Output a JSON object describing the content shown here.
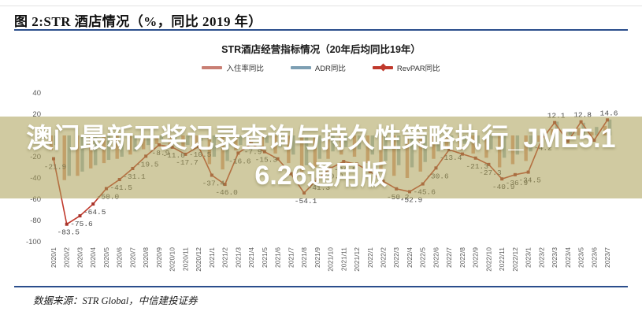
{
  "header": {
    "figure_title": "图 2:STR 酒店情况（%，同比 2019 年）"
  },
  "chart": {
    "title": "STR酒店经营指标情况（20年后均同比19年）",
    "legend": [
      {
        "label": "入住率同比",
        "color": "#c97f74",
        "marker": "line"
      },
      {
        "label": "ADR同比",
        "color": "#7d9fb3",
        "marker": "line"
      },
      {
        "label": "RevPAR同比",
        "color": "#c0392c",
        "marker": "line-diamond"
      }
    ]
  },
  "chart_data": {
    "type": "bar",
    "title": "STR酒店经营指标情况（20年后均同比19年）",
    "xlabel": "",
    "ylabel": "",
    "ylim": [
      -100,
      40
    ],
    "y_ticks": [
      40,
      20,
      0,
      -20,
      -40,
      -60,
      -80,
      -100
    ],
    "grid": false,
    "legend_position": "top",
    "categories": [
      "2020/1",
      "2020/2",
      "2020/3",
      "2020/4",
      "2020/5",
      "2020/6",
      "2020/7",
      "2020/8",
      "2020/9",
      "2020/10",
      "2020/11",
      "2020/12",
      "2021/1",
      "2021/2",
      "2021/3",
      "2021/4",
      "2021/5",
      "2021/6",
      "2021/7",
      "2021/8",
      "2021/9",
      "2021/10",
      "2021/11",
      "2021/12",
      "2022/1",
      "2022/2",
      "2022/3",
      "2022/4",
      "2022/5",
      "2022/6",
      "2022/7",
      "2022/8",
      "2022/9",
      "2022/10",
      "2022/11",
      "2022/12",
      "2023/1",
      "2023/2",
      "2023/3",
      "2023/4",
      "2023/5",
      "2023/6",
      "2023/7"
    ],
    "series": [
      {
        "name": "入住率同比",
        "type": "bar",
        "color": "#e0a284",
        "values": [
          -14,
          -42,
          -38,
          -31,
          -26,
          -22,
          -18,
          -13,
          -8,
          -10,
          -13,
          -9,
          -27,
          -32,
          -14,
          -7,
          -12,
          -17,
          -26,
          -38,
          -30,
          -22,
          -18,
          -20,
          -26,
          -33,
          -38,
          -40,
          -34,
          -22,
          -11,
          -14,
          -17,
          -21,
          -30,
          -27,
          -24,
          -6,
          6,
          2,
          7,
          3,
          9
        ]
      },
      {
        "name": "ADR同比",
        "type": "bar",
        "color": "#a4bcc2",
        "values": [
          -9,
          -38,
          -34,
          -28,
          -23,
          -20,
          -15,
          -9,
          -4,
          -6,
          -9,
          -5,
          -20,
          -24,
          -9,
          -3,
          -7,
          -11,
          -18,
          -28,
          -22,
          -15,
          -11,
          -13,
          -18,
          -24,
          -28,
          -30,
          -25,
          -15,
          -5,
          -8,
          -10,
          -13,
          -21,
          -18,
          -15,
          2,
          13,
          6,
          12,
          8,
          15
        ]
      },
      {
        "name": "RevPAR同比",
        "type": "line",
        "color": "#c0392c",
        "marker_color": "#a8332a",
        "values": [
          -21.9,
          -83.5,
          -75.6,
          -64.5,
          -50.0,
          -41.5,
          -31.1,
          -19.5,
          -8.9,
          -11.0,
          -17.7,
          -10.5,
          -37.4,
          -46.0,
          -16.6,
          -7.9,
          -15.3,
          -22.0,
          -36.0,
          -54.1,
          -41.3,
          -30.9,
          -24.5,
          -27.0,
          -34.0,
          -43.0,
          -50.2,
          -52.9,
          -45.6,
          -30.6,
          -13.4,
          -17.5,
          -21.3,
          -27.3,
          -40.9,
          -36.9,
          -34.5,
          -4.2,
          12.1,
          -5.6,
          12.8,
          -4.5,
          14.6
        ],
        "labels": [
          "-21.9",
          "-83.5",
          "-75.6",
          "-64.5",
          "-50.0",
          "-41.5",
          "-31.1",
          "-19.5",
          "-8.9",
          "-11.0",
          "-17.7",
          "-10.5",
          "-37.4",
          "-46.0",
          "-16.6",
          "-7.9",
          "-15.3",
          null,
          null,
          "-54.1",
          "-41.3",
          "-30.9",
          "-24.5",
          null,
          null,
          null,
          "-50.2",
          "-52.9",
          "-45.6",
          "-30.6",
          "-13.4",
          null,
          "-21.3",
          "-27.3",
          "-40.9",
          "-36.9",
          "-34.5",
          "-4.2",
          "12.1",
          null,
          "12.8",
          null,
          "14.6"
        ]
      }
    ]
  },
  "watermark": {
    "text": "澳门最新开奖记录查询与持久性策略执行_JME5.16.26通用版",
    "band_color": "rgba(169,159,84,0.55)"
  },
  "footer": {
    "source": "数据来源：STR Global，中信建投证券"
  },
  "colors": {
    "rule": "#2b4e8c",
    "tick_text": "#595959",
    "data_label": "#4a4a4a"
  }
}
